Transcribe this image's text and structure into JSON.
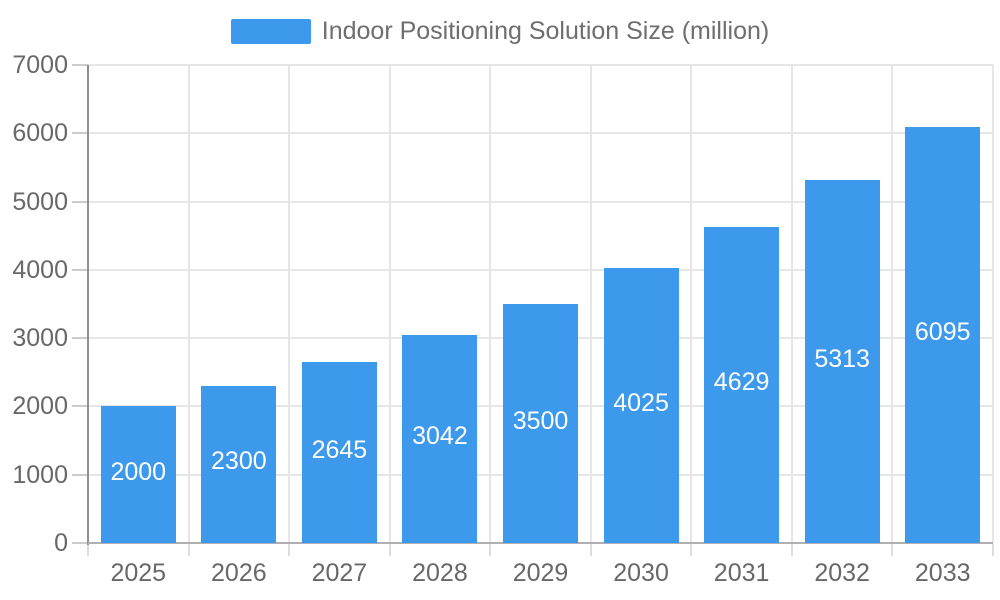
{
  "chart_data": {
    "type": "bar",
    "title": "",
    "categories": [
      "2025",
      "2026",
      "2027",
      "2028",
      "2029",
      "2030",
      "2031",
      "2032",
      "2033"
    ],
    "series": [
      {
        "name": "Indoor Positioning Solution Size (million)",
        "values": [
          2000,
          2300,
          2645,
          3042,
          3500,
          4025,
          4629,
          5313,
          6095
        ]
      }
    ],
    "xlabel": "",
    "ylabel": "",
    "ylim": [
      0,
      7000
    ],
    "ytick_step": 1000,
    "ytick_labels": [
      "0",
      "1000",
      "2000",
      "3000",
      "4000",
      "5000",
      "6000",
      "7000"
    ],
    "grid": true,
    "legend_position": "top",
    "bar_value_labels_inside": true
  },
  "colors": {
    "bar": "#3C99EC",
    "bar_label": "#FFFFFF",
    "grid_line": "#E6E6E6",
    "y_axis_line": "#909090",
    "x_axis_line": "#B0B0B0",
    "y_tick": "#CCCCCC",
    "x_tick": "#DDDDDD",
    "axis_text": "#686868",
    "legend_text": "#6E6E6E",
    "background": "#FFFFFF"
  }
}
